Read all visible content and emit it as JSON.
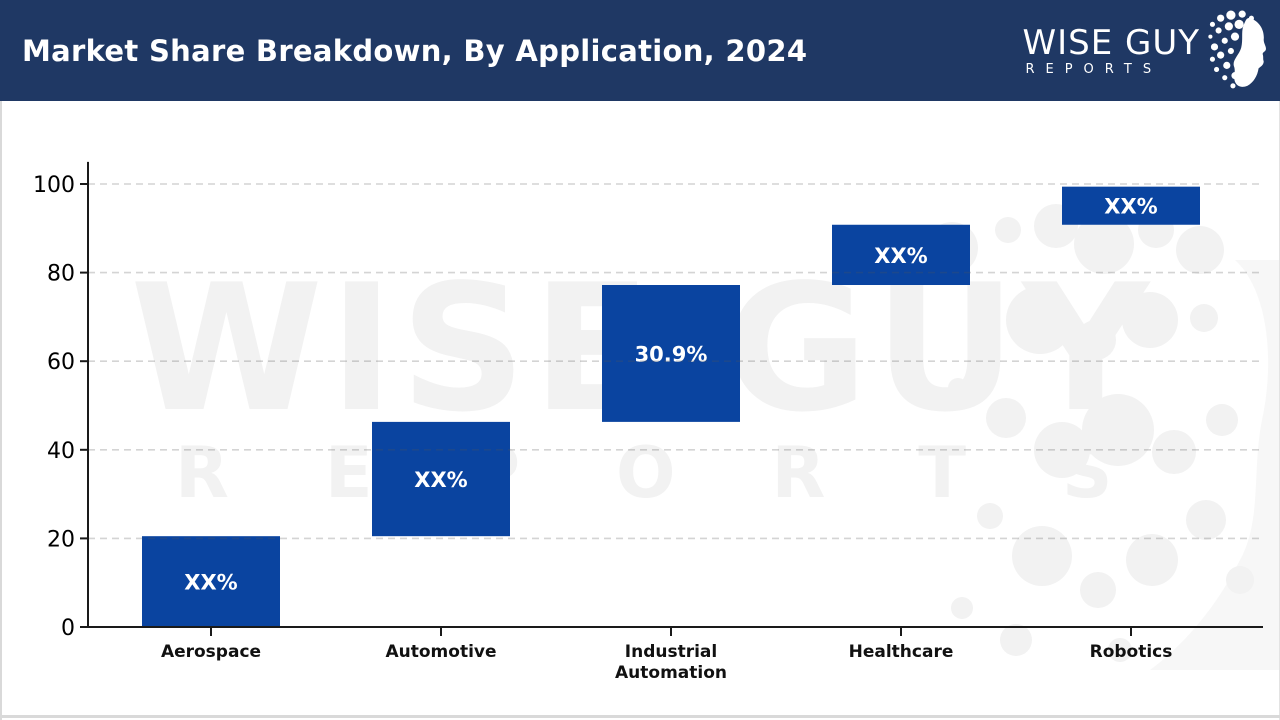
{
  "header": {
    "title": "Market Share Breakdown, By Application, 2024",
    "logo": {
      "line1": "WISE GUY",
      "line2": "REPORTS"
    },
    "bg_color": "#1f3864"
  },
  "watermark": {
    "line1": "WISE GUY",
    "line2": "REPORTS"
  },
  "chart_data": {
    "type": "bar",
    "subtype": "waterfall",
    "title": "Market Share Breakdown, By Application, 2024",
    "categories": [
      [
        "Aerospace"
      ],
      [
        "Automotive"
      ],
      [
        "Industrial",
        "Automation"
      ],
      [
        "Healthcare"
      ],
      [
        "Robotics"
      ]
    ],
    "segments": [
      {
        "category": "Aerospace",
        "start": 0,
        "end": 20.5,
        "label": "XX%"
      },
      {
        "category": "Automotive",
        "start": 20.5,
        "end": 46.3,
        "label": "XX%"
      },
      {
        "category": "Industrial Automation",
        "start": 46.3,
        "end": 77.2,
        "label": "30.9%"
      },
      {
        "category": "Healthcare",
        "start": 77.2,
        "end": 90.8,
        "label": "XX%"
      },
      {
        "category": "Robotics",
        "start": 90.8,
        "end": 99.4,
        "label": "XX%"
      }
    ],
    "yticks": [
      0,
      20,
      40,
      60,
      80,
      100
    ],
    "ylim": [
      0,
      105
    ],
    "xlabel": "",
    "ylabel": "",
    "bar_color": "#0a44a0",
    "bar_label_color": "#ffffff",
    "axis_color": "#1a1a1a",
    "grid": "dashed horizontal",
    "legend": "none"
  }
}
